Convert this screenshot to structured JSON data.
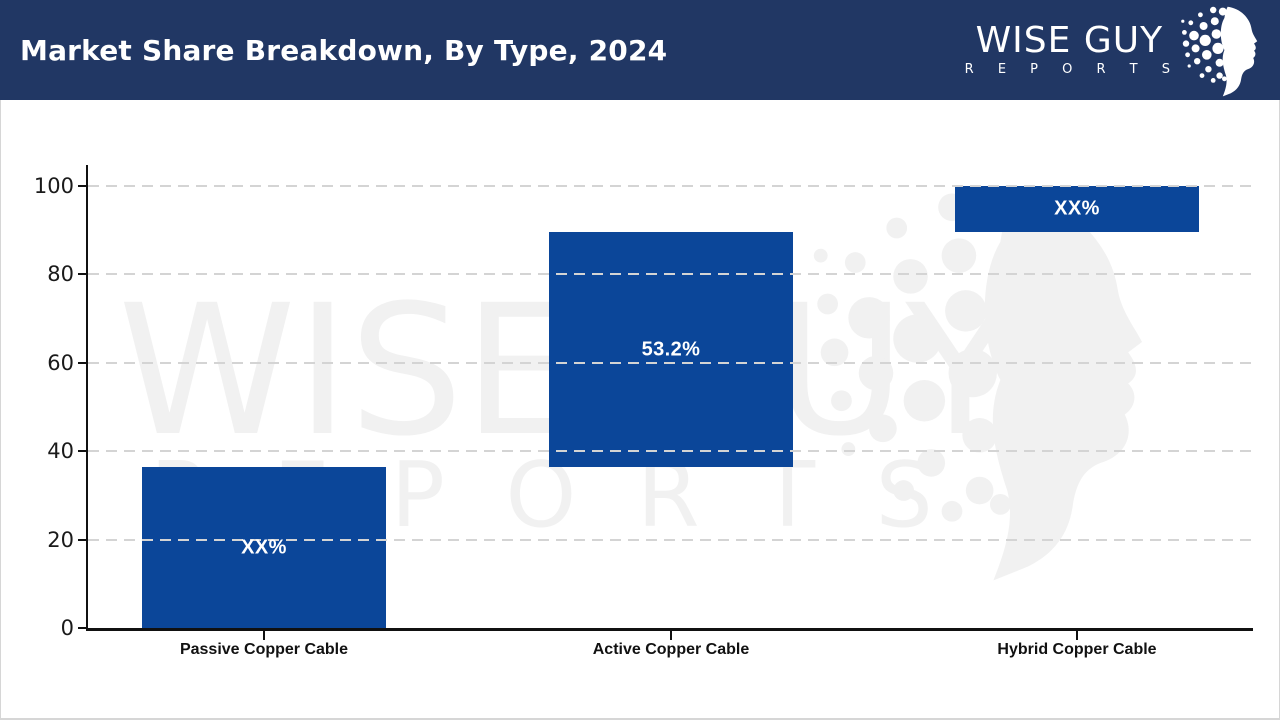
{
  "header": {
    "title": "Market Share Breakdown, By Type, 2024",
    "logo": {
      "name": "WISE GUY",
      "subname": "R E P O R T S"
    }
  },
  "watermark": {
    "line1": "WISE GUY",
    "line2": "R E P O R T S"
  },
  "chart_data": {
    "type": "bar",
    "variant": "floating-waterfall-segments",
    "title": "Market Share Breakdown, By Type, 2024",
    "categories": [
      "Passive Copper Cable",
      "Active Copper Cable",
      "Hybrid Copper Cable"
    ],
    "series": [
      {
        "name": "Market share (%)",
        "segments": [
          {
            "category": "Passive Copper Cable",
            "start": 0,
            "end": 36.4,
            "label": "XX%"
          },
          {
            "category": "Active Copper Cable",
            "start": 36.4,
            "end": 89.6,
            "label": "53.2%"
          },
          {
            "category": "Hybrid Copper Cable",
            "start": 89.6,
            "end": 100,
            "label": "XX%"
          }
        ]
      }
    ],
    "ylim": [
      0,
      100
    ],
    "yticks": [
      0,
      20,
      40,
      60,
      80,
      100
    ],
    "xlabel": "",
    "ylabel": "",
    "grid": "horizontal-dashed",
    "legend": "none",
    "bar_color": "#0b4699",
    "bar_label_color": "#ffffff",
    "axis_color": "#111111",
    "grid_color": "#d4d4d4"
  },
  "colors": {
    "header_bg": "#213764",
    "watermark": "#f1f1f1",
    "page_bg": "#ffffff"
  }
}
